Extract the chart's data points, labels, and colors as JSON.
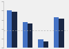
{
  "group_positions": [
    0,
    1,
    2,
    3
  ],
  "values_blue": [
    80,
    55,
    18,
    65
  ],
  "values_navy": [
    78,
    52,
    14,
    62
  ],
  "bar_color_blue": "#4472c4",
  "bar_color_navy": "#1a2744",
  "bar_width": 0.32,
  "dashed_line_y": 38,
  "background_color": "#f0f0f0",
  "plot_bg_color": "#f0f0f0",
  "ylim": [
    0,
    100
  ],
  "xlim_left": -0.55,
  "xlim_right": 3.55
}
